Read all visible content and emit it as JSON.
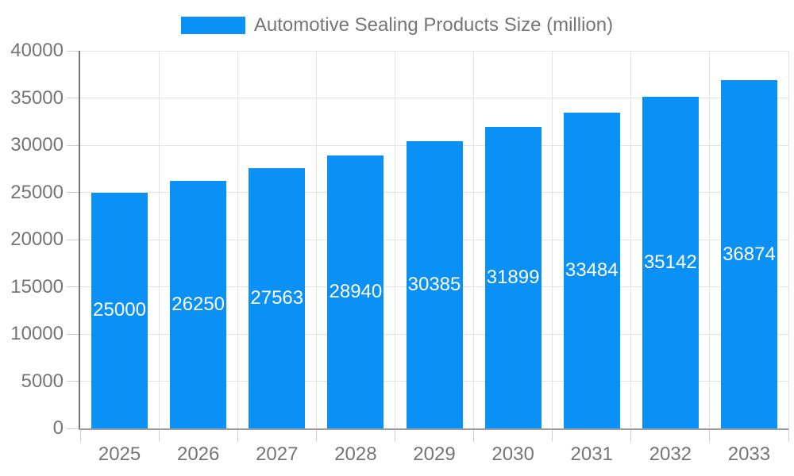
{
  "chart_data": {
    "type": "bar",
    "title": "Automotive Sealing Products Size (million)",
    "legend": {
      "label": "Automotive Sealing Products Size (million)",
      "position": "top-center"
    },
    "categories": [
      "2025",
      "2026",
      "2027",
      "2028",
      "2029",
      "2030",
      "2031",
      "2032",
      "2033"
    ],
    "series": [
      {
        "name": "Automotive Sealing Products Size (million)",
        "values": [
          25000,
          26250,
          27563,
          28940,
          30385,
          31899,
          33484,
          35142,
          36874
        ],
        "color": "#0b90f6"
      }
    ],
    "bar_value_labels": [
      "25000",
      "26250",
      "27563",
      "28940",
      "30385",
      "31899",
      "33484",
      "35142",
      "36874"
    ],
    "xlabel": "",
    "ylabel": "",
    "ylim": [
      0,
      40000
    ],
    "yticks": [
      0,
      5000,
      10000,
      15000,
      20000,
      25000,
      30000,
      35000,
      40000
    ],
    "grid": true,
    "value_label_position": "inside-center",
    "value_label_color": "#ffffff",
    "axis_text_color": "#757575",
    "gridline_color": "#e3e3e3"
  }
}
